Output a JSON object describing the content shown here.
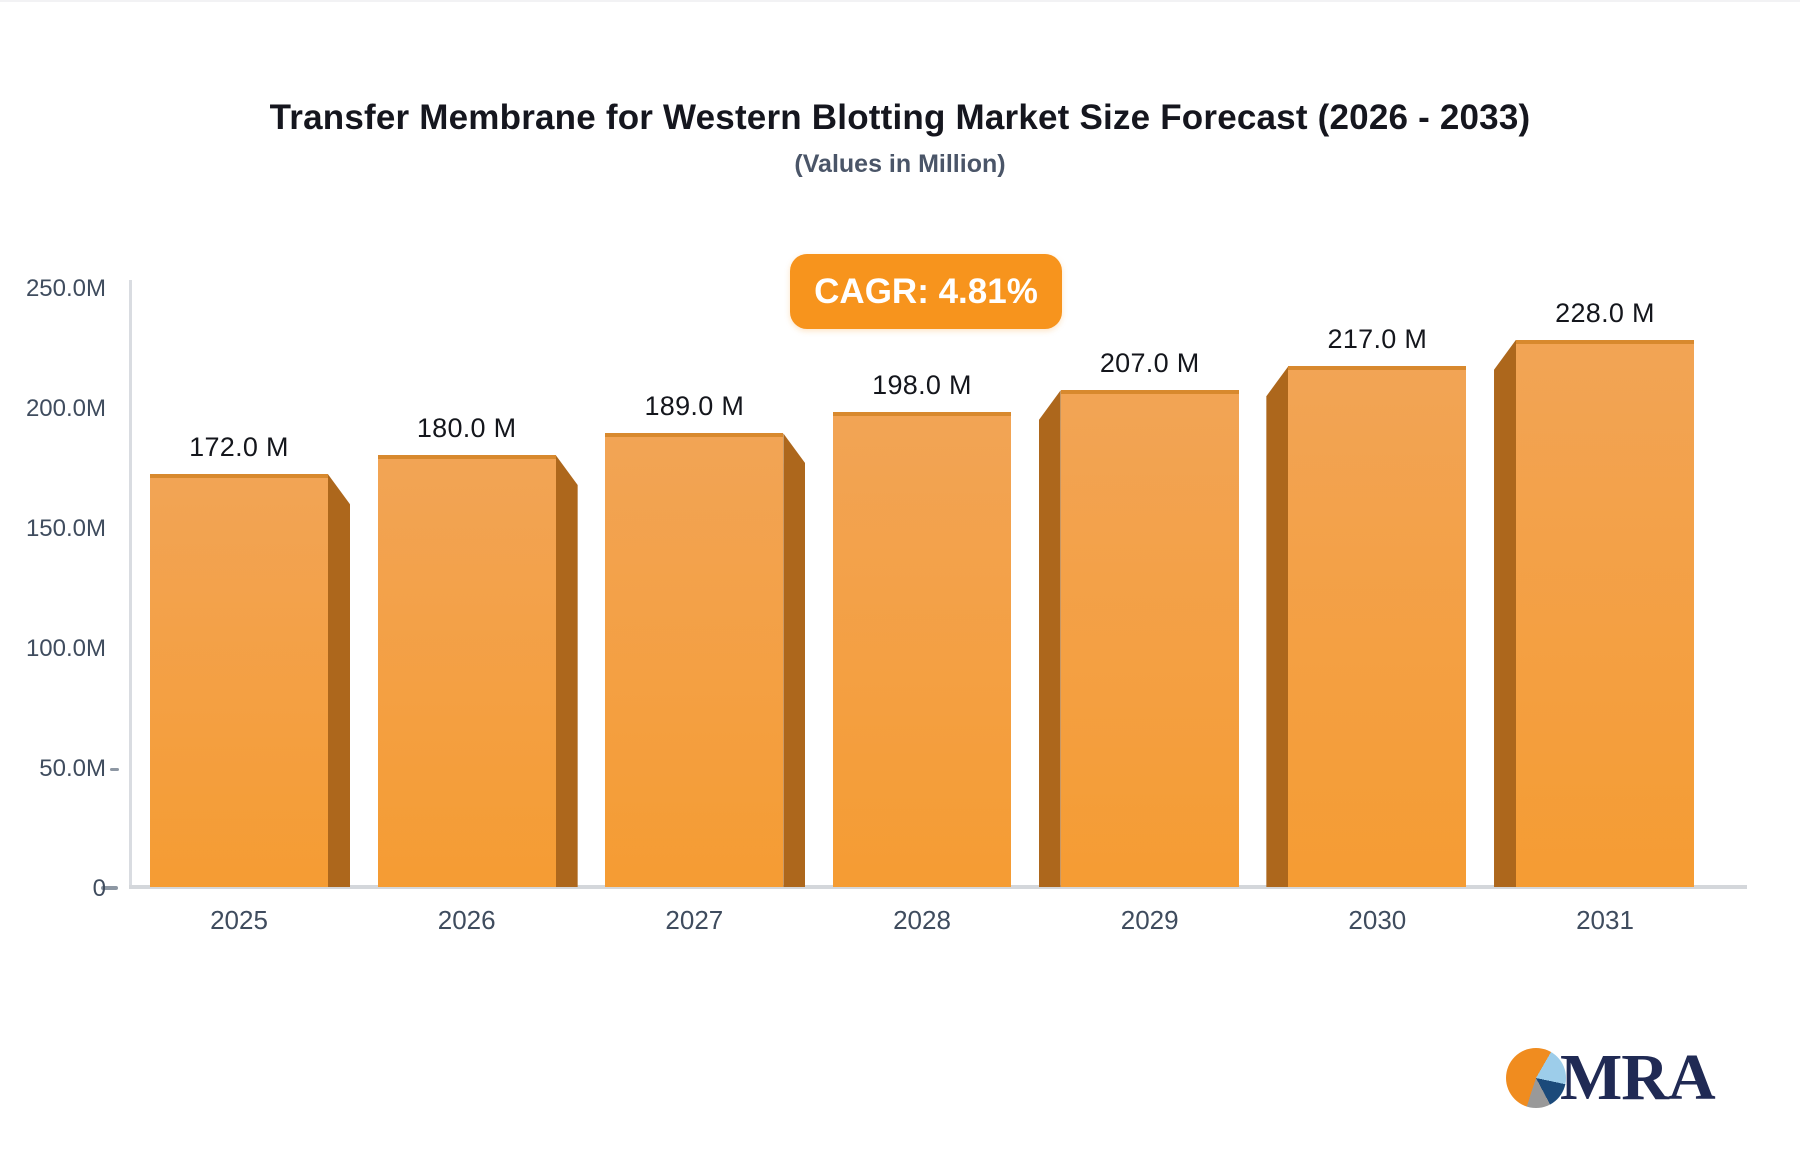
{
  "header": {
    "title": "Transfer Membrane for Western Blotting Market Size Forecast (2026 - 2033)",
    "subtitle": "(Values in Million)",
    "cagr_label": "CAGR: 4.81%"
  },
  "colors": {
    "bar_face_top": "#f2a455",
    "bar_face_bottom": "#f59c33",
    "bar_side": "#ad671c",
    "bar_top_edge": "#d8892e",
    "badge_background": "#f7941d",
    "badge_text": "#ffffff",
    "axis_line": "#d4d7db",
    "axis_text": "#3f4c5e",
    "title_text": "#15161e",
    "subtitle_text": "#4a5568",
    "value_text": "#14161c",
    "logo_text": "#202a54",
    "logo_pie_orange": "#f08c1f",
    "logo_pie_lightblue": "#9dcdea",
    "logo_pie_navy": "#1b4a7a",
    "logo_pie_gray": "#999999"
  },
  "chart_data": {
    "type": "bar",
    "title": "Transfer Membrane for Western Blotting Market Size Forecast (2026 - 2033)",
    "subtitle": "(Values in Million)",
    "annotation": "CAGR: 4.81%",
    "categories": [
      "2025",
      "2026",
      "2027",
      "2028",
      "2029",
      "2030",
      "2031"
    ],
    "values": [
      172,
      180,
      189,
      198,
      207,
      217,
      228
    ],
    "value_labels": [
      "172.0 M",
      "180.0 M",
      "189.0 M",
      "198.0 M",
      "207.0 M",
      "217.0 M",
      "228.0 M"
    ],
    "unit": "Million",
    "ylim": [
      0,
      250
    ],
    "ytick_values": [
      250,
      200,
      150,
      100,
      50,
      0
    ],
    "ytick_labels": [
      "250.0M",
      "200.0M",
      "150.0M",
      "100.0M",
      "50.0M",
      "0"
    ],
    "grid": false,
    "legend": "none",
    "style": "3d-perspective-bars-center-vanishing"
  },
  "logo": {
    "text": "MRA",
    "pie_icon": "pie-chart-icon"
  }
}
